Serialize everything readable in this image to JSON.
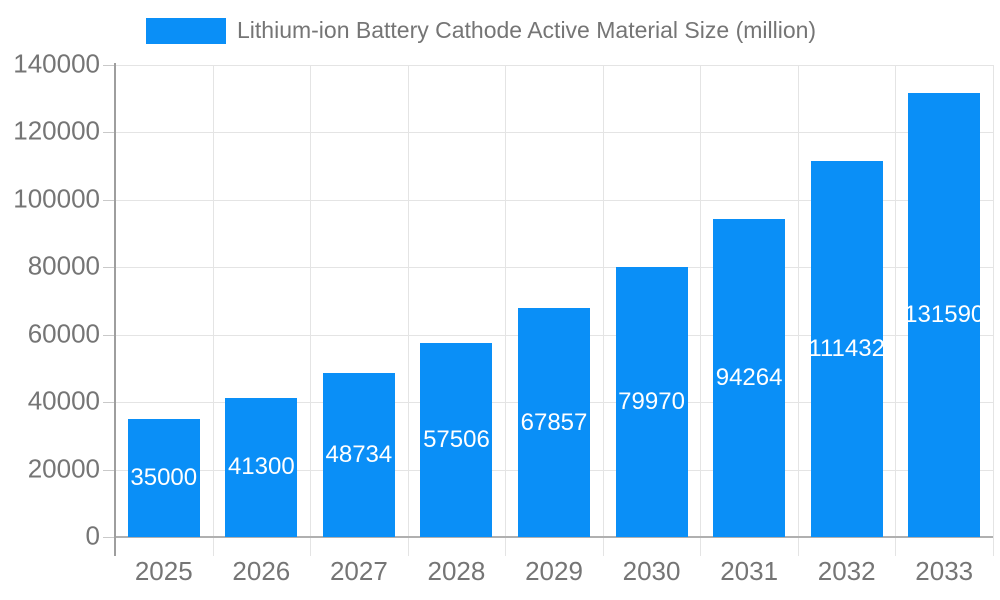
{
  "chart_data": {
    "type": "bar",
    "title": "Lithium-ion Battery Cathode Active Material Size (million)",
    "legend": {
      "position": "top",
      "entries": [
        {
          "label": "Lithium-ion Battery Cathode Active Material Size (million)",
          "swatch_color": "#0a8ff7"
        }
      ]
    },
    "categories": [
      "2025",
      "2026",
      "2027",
      "2028",
      "2029",
      "2030",
      "2031",
      "2032",
      "2033"
    ],
    "series": [
      {
        "name": "Lithium-ion Battery Cathode Active Material Size (million)",
        "values": [
          35000,
          41300,
          48734,
          57506,
          67857,
          79970,
          94264,
          111432,
          131590
        ]
      }
    ],
    "value_labels": [
      "35000",
      "41300",
      "48734",
      "57506",
      "67857",
      "79970",
      "94264",
      "111432",
      "131590"
    ],
    "xlabel": "",
    "ylabel": "",
    "ylim": [
      0,
      140000
    ],
    "yticks": [
      0,
      20000,
      40000,
      60000,
      80000,
      100000,
      120000,
      140000
    ],
    "ytick_labels": [
      "0",
      "20000",
      "40000",
      "60000",
      "80000",
      "100000",
      "120000",
      "140000"
    ],
    "grid": true,
    "colors": {
      "bar": "#0a8ff7",
      "value_label_text": "#ffffff",
      "axis_text": "#757575",
      "legend_text": "#757575",
      "gridline": "#e4e4e4",
      "tick": "#c9c9c9",
      "baseline": "#b0b0b0",
      "y_axis_line": "#9e9e9e",
      "background": "#ffffff"
    }
  }
}
